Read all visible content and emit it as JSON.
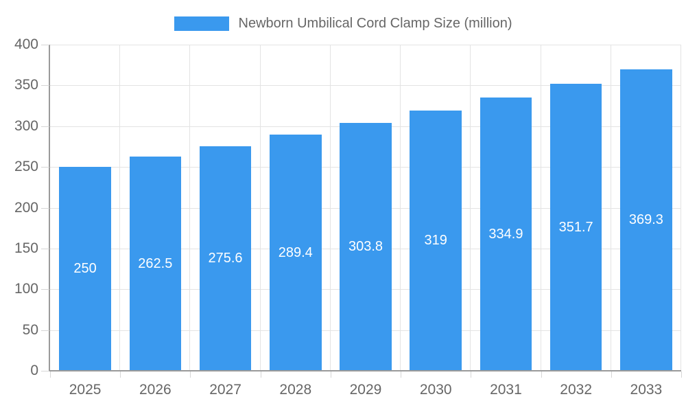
{
  "chart_data": {
    "type": "bar",
    "title": "",
    "legend": {
      "label": "Newborn Umbilical Cord Clamp Size (million)",
      "position": "top"
    },
    "categories": [
      "2025",
      "2026",
      "2027",
      "2028",
      "2029",
      "2030",
      "2031",
      "2032",
      "2033"
    ],
    "series": [
      {
        "name": "Newborn Umbilical Cord Clamp Size (million)",
        "values": [
          250,
          262.5,
          275.6,
          289.4,
          303.8,
          319,
          334.9,
          351.7,
          369.3
        ]
      }
    ],
    "value_labels": [
      "250",
      "262.5",
      "275.6",
      "289.4",
      "303.8",
      "319",
      "334.9",
      "351.7",
      "369.3"
    ],
    "xlabel": "",
    "ylabel": "",
    "ylim": [
      0,
      400
    ],
    "yticks": [
      0,
      50,
      100,
      150,
      200,
      250,
      300,
      350,
      400
    ],
    "grid": true,
    "layout": {
      "bar_width_fraction": 0.74,
      "value_label_position": "center"
    },
    "colors": {
      "bar": "#3a99ee",
      "grid": "#e3e3e3",
      "axis_line": "#9a9a9a",
      "tick": "#d6d6d6",
      "axis_text": "#666666",
      "value_label": "#ffffff"
    }
  }
}
